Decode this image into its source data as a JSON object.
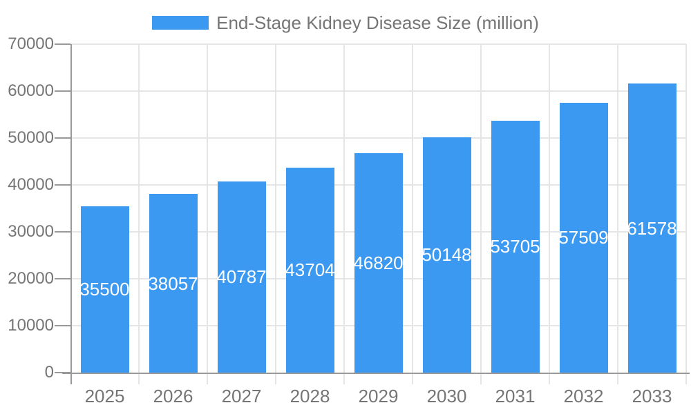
{
  "legend": {
    "label": "End-Stage Kidney Disease Size (million)"
  },
  "colors": {
    "background": "#FFFFFF",
    "bar": "#3B99F1",
    "gridline": "#E5E5E5",
    "axis_line": "#999999",
    "text": "#757575",
    "value_label": "#FFFFFF"
  },
  "chart_data": {
    "type": "bar",
    "title": "End-Stage Kidney Disease Size (million)",
    "categories": [
      "2025",
      "2026",
      "2027",
      "2028",
      "2029",
      "2030",
      "2031",
      "2032",
      "2033"
    ],
    "series": [
      {
        "name": "End-Stage Kidney Disease Size (million)",
        "values": [
          35500,
          38057,
          40787,
          43704,
          46820,
          50148,
          53705,
          57509,
          61578
        ]
      }
    ],
    "xlabel": "",
    "ylabel": "",
    "ylim": [
      0,
      70000
    ],
    "yticks": [
      0,
      10000,
      20000,
      30000,
      40000,
      50000,
      60000,
      70000
    ],
    "grid": true,
    "legend_position": "top",
    "value_label_position": "inside-center"
  }
}
